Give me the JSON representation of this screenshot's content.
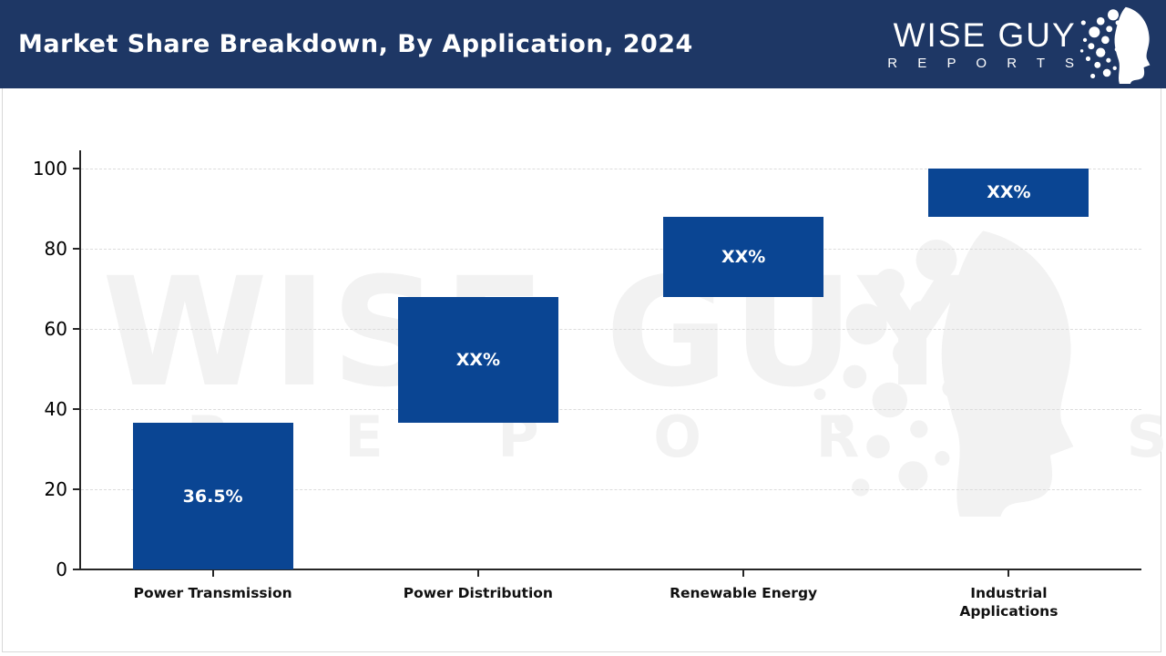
{
  "header": {
    "title": "Market Share Breakdown, By Application, 2024",
    "brand": {
      "name_top": "WISE GUY",
      "name_bottom": "R E P O R T S"
    }
  },
  "watermark": {
    "line1": "WISE GUY",
    "line2": "R E P O R T S"
  },
  "colors": {
    "header_bg": "#1e3765",
    "bar_fill": "#0a4593",
    "grid": "#dcdcdc",
    "axis": "#262626",
    "category_text": "#111111",
    "value_text": "#ffffff",
    "watermark": "#f2f2f2"
  },
  "chart_data": {
    "type": "bar",
    "subtype": "waterfall-stacked-range",
    "title": "Market Share Breakdown, By Application, 2024",
    "categories": [
      "Power Transmission",
      "Power Distribution",
      "Renewable Energy",
      "Industrial\nApplications"
    ],
    "series": [
      {
        "name": "Market Share",
        "segments": [
          {
            "category": "Power Transmission",
            "start": 0,
            "end": 36.5,
            "label": "36.5%"
          },
          {
            "category": "Power Distribution",
            "start": 36.5,
            "end": 68,
            "label": "XX%"
          },
          {
            "category": "Renewable Energy",
            "start": 68,
            "end": 88,
            "label": "XX%"
          },
          {
            "category": "Industrial Applications",
            "start": 88,
            "end": 100,
            "label": "XX%"
          }
        ]
      }
    ],
    "xlabel": "",
    "ylabel": "",
    "ylim": [
      0,
      100
    ],
    "yticks": [
      0,
      20,
      40,
      60,
      80,
      100
    ],
    "grid": "horizontal-dashed",
    "legend": "none"
  }
}
